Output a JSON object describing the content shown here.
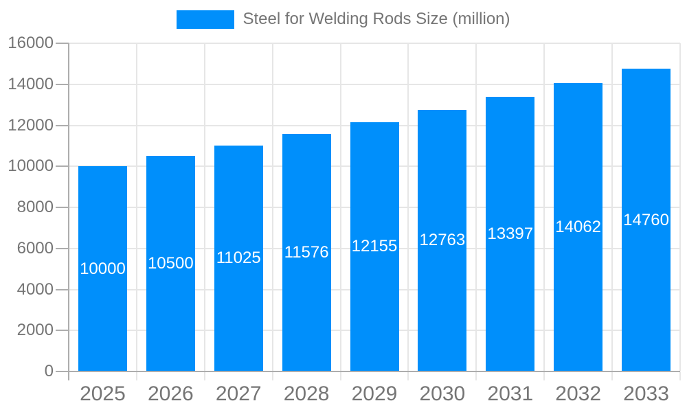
{
  "chart_data": {
    "type": "bar",
    "title": "",
    "legend": {
      "position": "top",
      "label": "Steel for Welding Rods Size (million)"
    },
    "series": [
      {
        "name": "Steel for Welding Rods Size (million)",
        "values": [
          10000,
          10500,
          11025,
          11576,
          12155,
          12763,
          13397,
          14062,
          14760
        ]
      }
    ],
    "categories": [
      "2025",
      "2026",
      "2027",
      "2028",
      "2029",
      "2030",
      "2031",
      "2032",
      "2033"
    ],
    "data_labels": [
      "10000",
      "10500",
      "11025",
      "11576",
      "12155",
      "12763",
      "13397",
      "14062",
      "14760"
    ],
    "xlabel": "",
    "ylabel": "",
    "ylim": [
      0,
      16000
    ],
    "ytick_step": 2000,
    "ytick_labels": [
      "0",
      "2000",
      "4000",
      "6000",
      "8000",
      "10000",
      "12000",
      "14000",
      "16000"
    ],
    "grid": true,
    "colors": {
      "bar": "#008FFB",
      "data_label": "#ffffff",
      "axis_label": "#757575",
      "legend_label": "#757575",
      "gridline": "#e6e6e6",
      "axis_line": "#adadad"
    }
  }
}
